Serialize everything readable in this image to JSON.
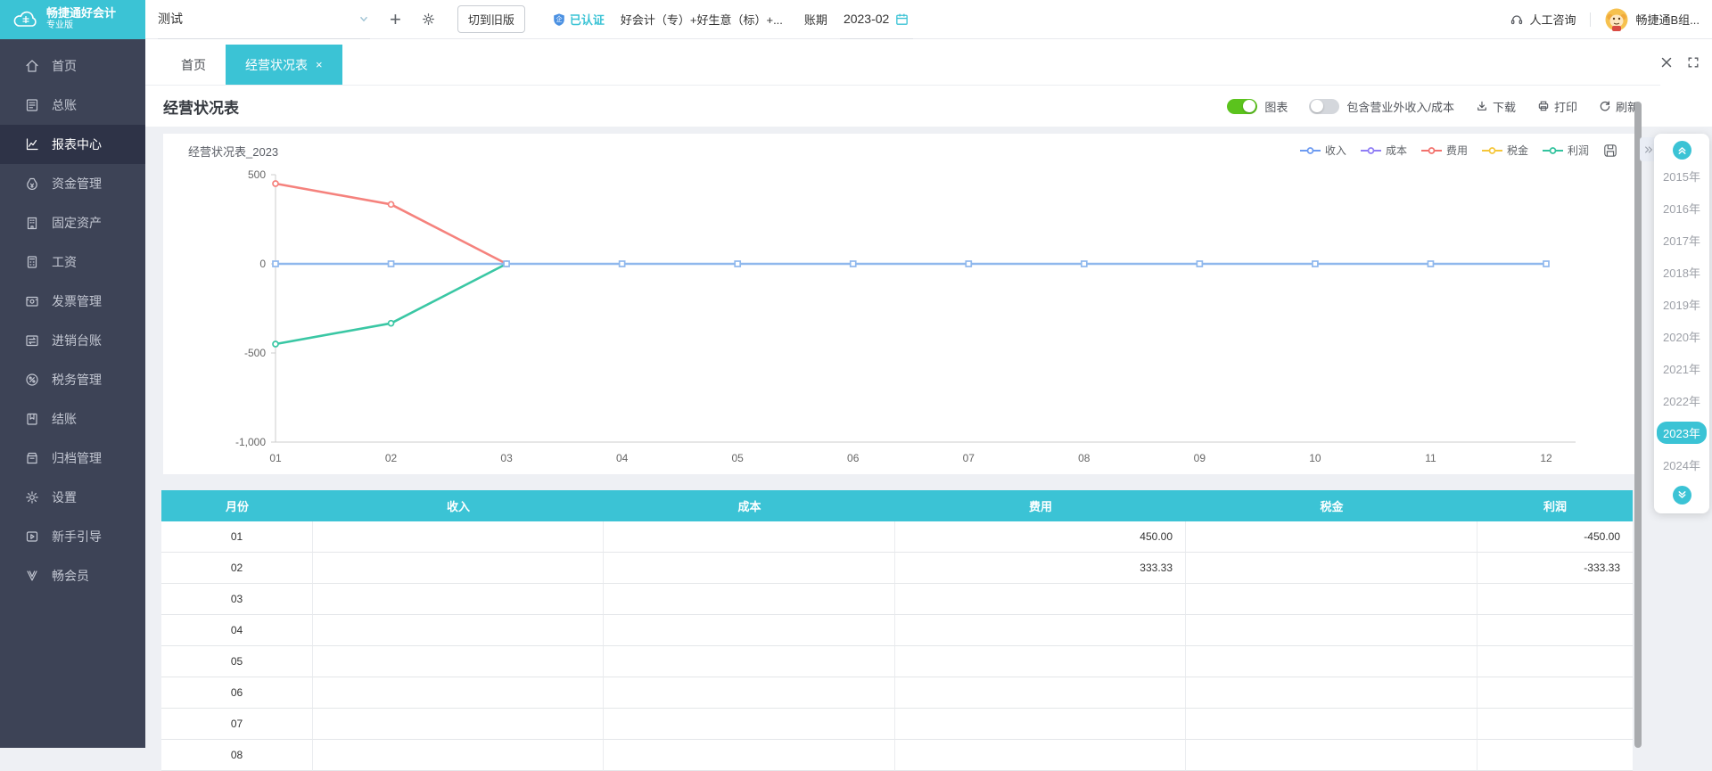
{
  "brand": {
    "name": "畅捷通好会计",
    "edition": "专业版"
  },
  "topbar": {
    "account_name": "测试",
    "switch_old_label": "切到旧版",
    "certified_label": "已认证",
    "products": "好会计（专）+好生意（标）+...",
    "period_label": "账期",
    "period_value": "2023-02",
    "support_label": "人工咨询",
    "user_name": "畅捷通B组..."
  },
  "tabs": [
    {
      "label": "首页",
      "active": false
    },
    {
      "label": "经营状况表",
      "active": true,
      "closable": true
    }
  ],
  "sidebar": {
    "items": [
      {
        "key": "home",
        "icon": "home-icon",
        "label": "首页",
        "active": false
      },
      {
        "key": "general-ledger",
        "icon": "ledger-icon",
        "label": "总账",
        "active": false
      },
      {
        "key": "report-center",
        "icon": "report-chart-icon",
        "label": "报表中心",
        "active": true
      },
      {
        "key": "funds",
        "icon": "money-bag-icon",
        "label": "资金管理",
        "active": false
      },
      {
        "key": "fixed-assets",
        "icon": "building-icon",
        "label": "固定资产",
        "active": false
      },
      {
        "key": "salary",
        "icon": "calculator-icon",
        "label": "工资",
        "active": false
      },
      {
        "key": "invoice",
        "icon": "invoice-icon",
        "label": "发票管理",
        "active": false
      },
      {
        "key": "purchase-sale",
        "icon": "inout-ledger-icon",
        "label": "进销台账",
        "active": false
      },
      {
        "key": "tax",
        "icon": "tax-icon",
        "label": "税务管理",
        "active": false
      },
      {
        "key": "closing",
        "icon": "closing-book-icon",
        "label": "结账",
        "active": false
      },
      {
        "key": "archive",
        "icon": "archive-box-icon",
        "label": "归档管理",
        "active": false
      },
      {
        "key": "settings",
        "icon": "gear-icon",
        "label": "设置",
        "active": false
      },
      {
        "key": "guide",
        "icon": "guide-play-icon",
        "label": "新手引导",
        "active": false
      },
      {
        "key": "member",
        "icon": "member-v-icon",
        "label": "畅会员",
        "active": false
      }
    ]
  },
  "page": {
    "title": "经营状况表",
    "toggles": [
      {
        "label": "图表",
        "on": true
      },
      {
        "label": "包含营业外收入/成本",
        "on": false
      }
    ],
    "actions": [
      {
        "key": "download",
        "label": "下载"
      },
      {
        "key": "print",
        "label": "打印"
      },
      {
        "key": "refresh",
        "label": "刷新"
      }
    ]
  },
  "chart_data": {
    "type": "line",
    "title": "经营状况表_2023",
    "x": [
      "01",
      "02",
      "03",
      "04",
      "05",
      "06",
      "07",
      "08",
      "09",
      "10",
      "11",
      "12"
    ],
    "ylim": [
      -1000,
      500
    ],
    "yticks": [
      500,
      0,
      -500,
      -1000
    ],
    "grid": false,
    "legend_position": "top-right",
    "series": [
      {
        "name": "收入",
        "color": "#6d9bf1",
        "line_color": "#8fb8ed",
        "marker": "square",
        "values": [
          0,
          0,
          0,
          0,
          0,
          0,
          0,
          0,
          0,
          0,
          0,
          0
        ]
      },
      {
        "name": "成本",
        "color": "#8f7df5",
        "marker": "circle",
        "values": [
          null,
          null,
          null,
          null,
          null,
          null,
          null,
          null,
          null,
          null,
          null,
          null
        ]
      },
      {
        "name": "费用",
        "color": "#f2726d",
        "line_color": "#f5827d",
        "marker": "circle",
        "values": [
          450,
          333.33,
          0,
          null,
          null,
          null,
          null,
          null,
          null,
          null,
          null,
          null
        ]
      },
      {
        "name": "税金",
        "color": "#f5c63a",
        "marker": "circle",
        "values": [
          null,
          null,
          null,
          null,
          null,
          null,
          null,
          null,
          null,
          null,
          null,
          null
        ]
      },
      {
        "name": "利润",
        "color": "#33c39e",
        "line_color": "#3ac7a4",
        "marker": "circle",
        "values": [
          -450,
          -333.33,
          0,
          null,
          null,
          null,
          null,
          null,
          null,
          null,
          null,
          null
        ]
      }
    ]
  },
  "table": {
    "headers": [
      "月份",
      "收入",
      "成本",
      "费用",
      "税金",
      "利润"
    ],
    "rows": [
      [
        "01",
        "",
        "",
        "450.00",
        "",
        "-450.00"
      ],
      [
        "02",
        "",
        "",
        "333.33",
        "",
        "-333.33"
      ],
      [
        "03",
        "",
        "",
        "",
        "",
        ""
      ],
      [
        "04",
        "",
        "",
        "",
        "",
        ""
      ],
      [
        "05",
        "",
        "",
        "",
        "",
        ""
      ],
      [
        "06",
        "",
        "",
        "",
        "",
        ""
      ],
      [
        "07",
        "",
        "",
        "",
        "",
        ""
      ],
      [
        "08",
        "",
        "",
        "",
        "",
        ""
      ]
    ]
  },
  "year_panel": {
    "years": [
      "2015年",
      "2016年",
      "2017年",
      "2018年",
      "2019年",
      "2020年",
      "2021年",
      "2022年",
      "2023年",
      "2024年"
    ],
    "selected": "2023年"
  },
  "colors": {
    "brand_teal": "#3bc3d5",
    "sidebar_bg": "#3d4356",
    "sidebar_active_bg": "#2e3347",
    "toggle_on_green": "#5bc31d",
    "table_header_bg": "#3bc3d5",
    "series_income_blue": "#6d9bf1",
    "series_cost_purple": "#8f7df5",
    "series_expense_red": "#f2726d",
    "series_tax_yellow": "#f5c63a",
    "series_profit_green": "#33c39e"
  }
}
